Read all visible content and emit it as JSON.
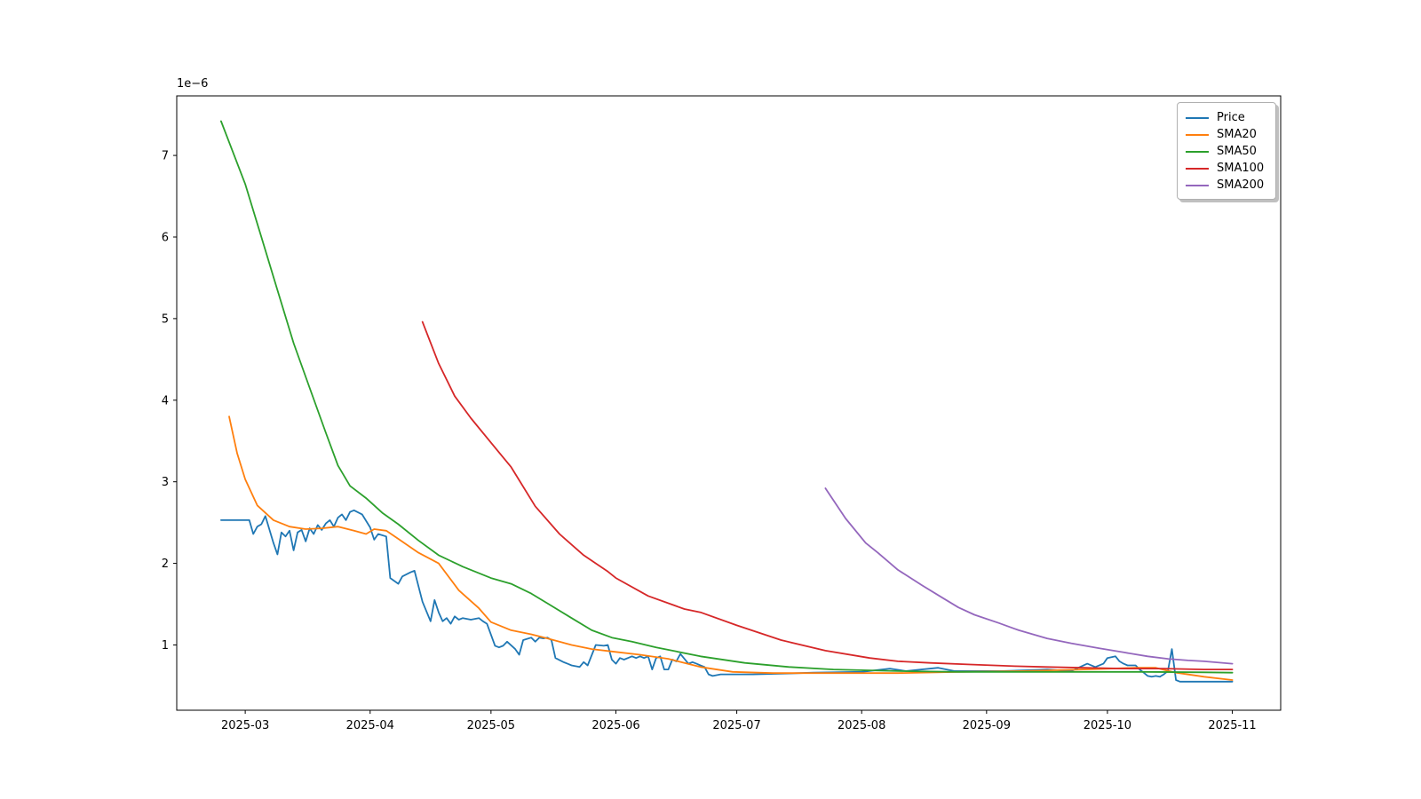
{
  "figure": {
    "background": "#ffffff",
    "offset_text": "1e−6"
  },
  "chart_data": {
    "type": "line",
    "title": "",
    "xlabel": "",
    "ylabel": "",
    "y_offset_label": "1e−6",
    "y_unit_multiplier": 1e-06,
    "grid": false,
    "legend_position": "upper right",
    "xlim": [
      "2025-02-12",
      "2025-11-13"
    ],
    "ylim": [
      0.2,
      7.73
    ],
    "yticks": [
      1,
      2,
      3,
      4,
      5,
      6,
      7
    ],
    "xticks": [
      {
        "date": "2025-03-01",
        "label": "2025-03"
      },
      {
        "date": "2025-04-01",
        "label": "2025-04"
      },
      {
        "date": "2025-05-01",
        "label": "2025-05"
      },
      {
        "date": "2025-06-01",
        "label": "2025-06"
      },
      {
        "date": "2025-07-01",
        "label": "2025-07"
      },
      {
        "date": "2025-08-01",
        "label": "2025-08"
      },
      {
        "date": "2025-09-01",
        "label": "2025-09"
      },
      {
        "date": "2025-10-01",
        "label": "2025-10"
      },
      {
        "date": "2025-11-01",
        "label": "2025-11"
      }
    ],
    "series": [
      {
        "name": "Price",
        "color": "#1f77b4",
        "points": [
          [
            "2025-02-23",
            2.53
          ],
          [
            "2025-02-28",
            2.53
          ],
          [
            "2025-03-02",
            2.53
          ],
          [
            "2025-03-03",
            2.36
          ],
          [
            "2025-03-04",
            2.45
          ],
          [
            "2025-03-05",
            2.48
          ],
          [
            "2025-03-06",
            2.58
          ],
          [
            "2025-03-08",
            2.25
          ],
          [
            "2025-03-09",
            2.11
          ],
          [
            "2025-03-10",
            2.38
          ],
          [
            "2025-03-11",
            2.33
          ],
          [
            "2025-03-12",
            2.4
          ],
          [
            "2025-03-13",
            2.16
          ],
          [
            "2025-03-14",
            2.38
          ],
          [
            "2025-03-15",
            2.41
          ],
          [
            "2025-03-16",
            2.27
          ],
          [
            "2025-03-17",
            2.43
          ],
          [
            "2025-03-18",
            2.36
          ],
          [
            "2025-03-19",
            2.47
          ],
          [
            "2025-03-20",
            2.41
          ],
          [
            "2025-03-21",
            2.49
          ],
          [
            "2025-03-22",
            2.53
          ],
          [
            "2025-03-23",
            2.45
          ],
          [
            "2025-03-24",
            2.56
          ],
          [
            "2025-03-25",
            2.6
          ],
          [
            "2025-03-26",
            2.53
          ],
          [
            "2025-03-27",
            2.63
          ],
          [
            "2025-03-28",
            2.65
          ],
          [
            "2025-03-30",
            2.6
          ],
          [
            "2025-04-01",
            2.44
          ],
          [
            "2025-04-02",
            2.29
          ],
          [
            "2025-04-03",
            2.36
          ],
          [
            "2025-04-05",
            2.33
          ],
          [
            "2025-04-06",
            1.82
          ],
          [
            "2025-04-08",
            1.75
          ],
          [
            "2025-04-09",
            1.84
          ],
          [
            "2025-04-11",
            1.89
          ],
          [
            "2025-04-12",
            1.91
          ],
          [
            "2025-04-14",
            1.53
          ],
          [
            "2025-04-16",
            1.29
          ],
          [
            "2025-04-17",
            1.55
          ],
          [
            "2025-04-18",
            1.4
          ],
          [
            "2025-04-19",
            1.29
          ],
          [
            "2025-04-20",
            1.33
          ],
          [
            "2025-04-21",
            1.26
          ],
          [
            "2025-04-22",
            1.35
          ],
          [
            "2025-04-23",
            1.31
          ],
          [
            "2025-04-24",
            1.33
          ],
          [
            "2025-04-26",
            1.31
          ],
          [
            "2025-04-28",
            1.33
          ],
          [
            "2025-04-29",
            1.29
          ],
          [
            "2025-04-30",
            1.26
          ],
          [
            "2025-05-02",
            0.99
          ],
          [
            "2025-05-03",
            0.97
          ],
          [
            "2025-05-04",
            0.99
          ],
          [
            "2025-05-05",
            1.04
          ],
          [
            "2025-05-07",
            0.95
          ],
          [
            "2025-05-08",
            0.88
          ],
          [
            "2025-05-09",
            1.06
          ],
          [
            "2025-05-11",
            1.09
          ],
          [
            "2025-05-12",
            1.04
          ],
          [
            "2025-05-13",
            1.09
          ],
          [
            "2025-05-14",
            1.08
          ],
          [
            "2025-05-15",
            1.09
          ],
          [
            "2025-05-16",
            1.06
          ],
          [
            "2025-05-17",
            0.84
          ],
          [
            "2025-05-19",
            0.79
          ],
          [
            "2025-05-20",
            0.77
          ],
          [
            "2025-05-21",
            0.75
          ],
          [
            "2025-05-23",
            0.73
          ],
          [
            "2025-05-24",
            0.79
          ],
          [
            "2025-05-25",
            0.75
          ],
          [
            "2025-05-27",
            1.0
          ],
          [
            "2025-05-29",
            0.99
          ],
          [
            "2025-05-30",
            1.0
          ],
          [
            "2025-05-31",
            0.82
          ],
          [
            "2025-06-01",
            0.77
          ],
          [
            "2025-06-02",
            0.84
          ],
          [
            "2025-06-03",
            0.82
          ],
          [
            "2025-06-05",
            0.86
          ],
          [
            "2025-06-06",
            0.84
          ],
          [
            "2025-06-07",
            0.86
          ],
          [
            "2025-06-08",
            0.84
          ],
          [
            "2025-06-09",
            0.86
          ],
          [
            "2025-06-10",
            0.7
          ],
          [
            "2025-06-11",
            0.84
          ],
          [
            "2025-06-12",
            0.86
          ],
          [
            "2025-06-13",
            0.7
          ],
          [
            "2025-06-14",
            0.7
          ],
          [
            "2025-06-15",
            0.82
          ],
          [
            "2025-06-16",
            0.8
          ],
          [
            "2025-06-17",
            0.89
          ],
          [
            "2025-06-19",
            0.77
          ],
          [
            "2025-06-20",
            0.79
          ],
          [
            "2025-06-21",
            0.77
          ],
          [
            "2025-06-22",
            0.75
          ],
          [
            "2025-06-23",
            0.73
          ],
          [
            "2025-06-24",
            0.64
          ],
          [
            "2025-06-25",
            0.62
          ],
          [
            "2025-06-27",
            0.64
          ],
          [
            "2025-07-05",
            0.64
          ],
          [
            "2025-07-14",
            0.65
          ],
          [
            "2025-07-20",
            0.66
          ],
          [
            "2025-08-01",
            0.67
          ],
          [
            "2025-08-08",
            0.71
          ],
          [
            "2025-08-12",
            0.68
          ],
          [
            "2025-08-20",
            0.72
          ],
          [
            "2025-08-24",
            0.68
          ],
          [
            "2025-09-05",
            0.68
          ],
          [
            "2025-09-16",
            0.7
          ],
          [
            "2025-09-22",
            0.68
          ],
          [
            "2025-09-26",
            0.77
          ],
          [
            "2025-09-28",
            0.73
          ],
          [
            "2025-09-30",
            0.77
          ],
          [
            "2025-10-01",
            0.84
          ],
          [
            "2025-10-03",
            0.86
          ],
          [
            "2025-10-04",
            0.8
          ],
          [
            "2025-10-05",
            0.77
          ],
          [
            "2025-10-06",
            0.75
          ],
          [
            "2025-10-08",
            0.75
          ],
          [
            "2025-10-09",
            0.7
          ],
          [
            "2025-10-10",
            0.66
          ],
          [
            "2025-10-11",
            0.62
          ],
          [
            "2025-10-12",
            0.61
          ],
          [
            "2025-10-13",
            0.62
          ],
          [
            "2025-10-14",
            0.61
          ],
          [
            "2025-10-15",
            0.64
          ],
          [
            "2025-10-16",
            0.68
          ],
          [
            "2025-10-17",
            0.95
          ],
          [
            "2025-10-18",
            0.57
          ],
          [
            "2025-10-19",
            0.55
          ],
          [
            "2025-11-01",
            0.55
          ]
        ]
      },
      {
        "name": "SMA20",
        "color": "#ff7f0e",
        "points": [
          [
            "2025-02-25",
            3.8
          ],
          [
            "2025-02-27",
            3.35
          ],
          [
            "2025-03-01",
            3.03
          ],
          [
            "2025-03-04",
            2.71
          ],
          [
            "2025-03-08",
            2.53
          ],
          [
            "2025-03-12",
            2.45
          ],
          [
            "2025-03-16",
            2.42
          ],
          [
            "2025-03-20",
            2.43
          ],
          [
            "2025-03-24",
            2.45
          ],
          [
            "2025-03-28",
            2.4
          ],
          [
            "2025-03-31",
            2.36
          ],
          [
            "2025-04-02",
            2.42
          ],
          [
            "2025-04-05",
            2.4
          ],
          [
            "2025-04-08",
            2.3
          ],
          [
            "2025-04-13",
            2.13
          ],
          [
            "2025-04-18",
            2.0
          ],
          [
            "2025-04-23",
            1.67
          ],
          [
            "2025-04-28",
            1.45
          ],
          [
            "2025-05-01",
            1.28
          ],
          [
            "2025-05-06",
            1.18
          ],
          [
            "2025-05-11",
            1.13
          ],
          [
            "2025-05-15",
            1.08
          ],
          [
            "2025-05-21",
            1.0
          ],
          [
            "2025-05-26",
            0.95
          ],
          [
            "2025-05-31",
            0.92
          ],
          [
            "2025-06-07",
            0.88
          ],
          [
            "2025-06-14",
            0.83
          ],
          [
            "2025-06-22",
            0.73
          ],
          [
            "2025-06-30",
            0.67
          ],
          [
            "2025-07-10",
            0.655
          ],
          [
            "2025-07-25",
            0.655
          ],
          [
            "2025-08-10",
            0.655
          ],
          [
            "2025-08-25",
            0.67
          ],
          [
            "2025-09-10",
            0.68
          ],
          [
            "2025-09-25",
            0.7
          ],
          [
            "2025-10-02",
            0.71
          ],
          [
            "2025-10-08",
            0.72
          ],
          [
            "2025-10-13",
            0.72
          ],
          [
            "2025-10-18",
            0.66
          ],
          [
            "2025-10-25",
            0.61
          ],
          [
            "2025-11-01",
            0.57
          ]
        ]
      },
      {
        "name": "SMA50",
        "color": "#2ca02c",
        "points": [
          [
            "2025-02-23",
            7.42
          ],
          [
            "2025-03-01",
            6.65
          ],
          [
            "2025-03-05",
            6.0
          ],
          [
            "2025-03-09",
            5.35
          ],
          [
            "2025-03-13",
            4.7
          ],
          [
            "2025-03-17",
            4.15
          ],
          [
            "2025-03-21",
            3.6
          ],
          [
            "2025-03-24",
            3.2
          ],
          [
            "2025-03-27",
            2.95
          ],
          [
            "2025-03-31",
            2.8
          ],
          [
            "2025-04-04",
            2.62
          ],
          [
            "2025-04-08",
            2.48
          ],
          [
            "2025-04-13",
            2.28
          ],
          [
            "2025-04-18",
            2.1
          ],
          [
            "2025-04-24",
            1.96
          ],
          [
            "2025-05-01",
            1.82
          ],
          [
            "2025-05-06",
            1.75
          ],
          [
            "2025-05-11",
            1.63
          ],
          [
            "2025-05-15",
            1.51
          ],
          [
            "2025-05-21",
            1.33
          ],
          [
            "2025-05-26",
            1.18
          ],
          [
            "2025-05-31",
            1.09
          ],
          [
            "2025-06-05",
            1.04
          ],
          [
            "2025-06-11",
            0.97
          ],
          [
            "2025-06-16",
            0.92
          ],
          [
            "2025-06-22",
            0.86
          ],
          [
            "2025-07-03",
            0.78
          ],
          [
            "2025-07-14",
            0.73
          ],
          [
            "2025-07-25",
            0.7
          ],
          [
            "2025-08-10",
            0.68
          ],
          [
            "2025-08-25",
            0.67
          ],
          [
            "2025-09-10",
            0.67
          ],
          [
            "2025-09-25",
            0.67
          ],
          [
            "2025-10-10",
            0.67
          ],
          [
            "2025-10-25",
            0.665
          ],
          [
            "2025-11-01",
            0.66
          ]
        ]
      },
      {
        "name": "SMA100",
        "color": "#d62728",
        "points": [
          [
            "2025-04-14",
            4.96
          ],
          [
            "2025-04-18",
            4.45
          ],
          [
            "2025-04-22",
            4.05
          ],
          [
            "2025-04-26",
            3.78
          ],
          [
            "2025-05-01",
            3.48
          ],
          [
            "2025-05-06",
            3.18
          ],
          [
            "2025-05-12",
            2.7
          ],
          [
            "2025-05-18",
            2.36
          ],
          [
            "2025-05-24",
            2.1
          ],
          [
            "2025-05-30",
            1.9
          ],
          [
            "2025-06-01",
            1.82
          ],
          [
            "2025-06-09",
            1.6
          ],
          [
            "2025-06-18",
            1.44
          ],
          [
            "2025-06-22",
            1.4
          ],
          [
            "2025-07-01",
            1.24
          ],
          [
            "2025-07-12",
            1.06
          ],
          [
            "2025-07-23",
            0.93
          ],
          [
            "2025-08-03",
            0.84
          ],
          [
            "2025-08-10",
            0.8
          ],
          [
            "2025-08-18",
            0.78
          ],
          [
            "2025-08-28",
            0.76
          ],
          [
            "2025-09-08",
            0.74
          ],
          [
            "2025-09-16",
            0.73
          ],
          [
            "2025-09-25",
            0.72
          ],
          [
            "2025-10-05",
            0.71
          ],
          [
            "2025-10-15",
            0.71
          ],
          [
            "2025-10-25",
            0.7
          ],
          [
            "2025-11-01",
            0.7
          ]
        ]
      },
      {
        "name": "SMA200",
        "color": "#9467bd",
        "points": [
          [
            "2025-07-23",
            2.92
          ],
          [
            "2025-07-28",
            2.55
          ],
          [
            "2025-08-02",
            2.25
          ],
          [
            "2025-08-05",
            2.13
          ],
          [
            "2025-08-10",
            1.92
          ],
          [
            "2025-08-16",
            1.73
          ],
          [
            "2025-08-21",
            1.58
          ],
          [
            "2025-08-25",
            1.46
          ],
          [
            "2025-08-29",
            1.37
          ],
          [
            "2025-09-04",
            1.27
          ],
          [
            "2025-09-09",
            1.18
          ],
          [
            "2025-09-16",
            1.08
          ],
          [
            "2025-09-22",
            1.02
          ],
          [
            "2025-09-29",
            0.96
          ],
          [
            "2025-10-05",
            0.91
          ],
          [
            "2025-10-11",
            0.86
          ],
          [
            "2025-10-16",
            0.83
          ],
          [
            "2025-10-21",
            0.81
          ],
          [
            "2025-10-25",
            0.8
          ],
          [
            "2025-11-01",
            0.77
          ]
        ]
      }
    ]
  }
}
